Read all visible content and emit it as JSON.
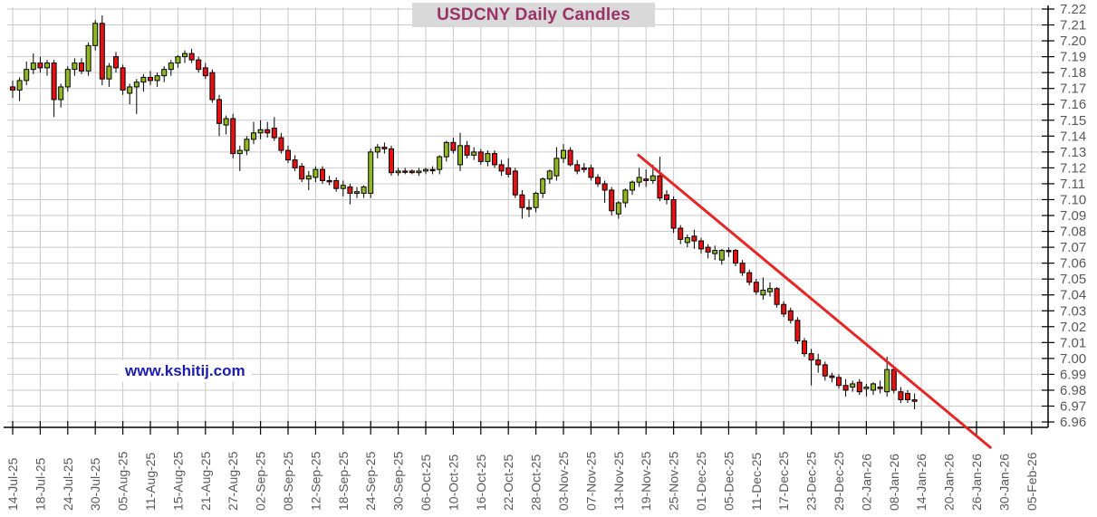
{
  "title": "USDCNY Daily Candles",
  "watermark": "www.kshitij.com",
  "chart_data": {
    "type": "candlestick",
    "title": "USDCNY Daily Candles",
    "x_labels": [
      "14-Jul-25",
      "18-Jul-25",
      "24-Jul-25",
      "30-Jul-25",
      "05-Aug-25",
      "11-Aug-25",
      "15-Aug-25",
      "21-Aug-25",
      "27-Aug-25",
      "02-Sep-25",
      "08-Sep-25",
      "12-Sep-25",
      "18-Sep-25",
      "24-Sep-25",
      "30-Sep-25",
      "06-Oct-25",
      "10-Oct-25",
      "16-Oct-25",
      "22-Oct-25",
      "28-Oct-25",
      "03-Nov-25",
      "07-Nov-25",
      "13-Nov-25",
      "19-Nov-25",
      "25-Nov-25",
      "01-Dec-25",
      "05-Dec-25",
      "11-Dec-25",
      "17-Dec-25",
      "23-Dec-25",
      "29-Dec-25",
      "02-Jan-26",
      "08-Jan-26",
      "14-Jan-26",
      "20-Jan-26",
      "26-Jan-26",
      "30-Jan-26",
      "05-Feb-26"
    ],
    "label_every_n_candles": 4,
    "y_ticks": [
      "7.22",
      "7.21",
      "7.20",
      "7.19",
      "7.18",
      "7.17",
      "7.16",
      "7.15",
      "7.14",
      "7.13",
      "7.12",
      "7.11",
      "7.10",
      "7.09",
      "7.08",
      "7.07",
      "7.06",
      "7.05",
      "7.04",
      "7.03",
      "7.02",
      "7.01",
      "7.00",
      "6.99",
      "6.98",
      "6.97",
      "6.96"
    ],
    "ylim": [
      6.955,
      7.225
    ],
    "grid": true,
    "candles_ohlc": [
      [
        7.171,
        7.175,
        7.164,
        7.169
      ],
      [
        7.169,
        7.177,
        7.162,
        7.175
      ],
      [
        7.175,
        7.187,
        7.172,
        7.182
      ],
      [
        7.182,
        7.192,
        7.179,
        7.186
      ],
      [
        7.186,
        7.19,
        7.18,
        7.183
      ],
      [
        7.183,
        7.188,
        7.178,
        7.186
      ],
      [
        7.186,
        7.188,
        7.152,
        7.163
      ],
      [
        7.163,
        7.173,
        7.158,
        7.171
      ],
      [
        7.171,
        7.184,
        7.168,
        7.182
      ],
      [
        7.182,
        7.189,
        7.178,
        7.186
      ],
      [
        7.186,
        7.189,
        7.179,
        7.181
      ],
      [
        7.181,
        7.199,
        7.178,
        7.197
      ],
      [
        7.197,
        7.213,
        7.194,
        7.211
      ],
      [
        7.211,
        7.216,
        7.172,
        7.176
      ],
      [
        7.176,
        7.186,
        7.171,
        7.184
      ],
      [
        7.19,
        7.193,
        7.18,
        7.183
      ],
      [
        7.183,
        7.185,
        7.166,
        7.169
      ],
      [
        7.167,
        7.173,
        7.16,
        7.171
      ],
      [
        7.171,
        7.176,
        7.154,
        7.174
      ],
      [
        7.174,
        7.179,
        7.168,
        7.177
      ],
      [
        7.177,
        7.181,
        7.172,
        7.175
      ],
      [
        7.175,
        7.18,
        7.171,
        7.178
      ],
      [
        7.178,
        7.184,
        7.174,
        7.182
      ],
      [
        7.182,
        7.188,
        7.178,
        7.186
      ],
      [
        7.186,
        7.191,
        7.183,
        7.19
      ],
      [
        7.19,
        7.194,
        7.186,
        7.192
      ],
      [
        7.192,
        7.195,
        7.186,
        7.188
      ],
      [
        7.188,
        7.19,
        7.18,
        7.182
      ],
      [
        7.183,
        7.186,
        7.176,
        7.178
      ],
      [
        7.18,
        7.182,
        7.161,
        7.163
      ],
      [
        7.163,
        7.166,
        7.14,
        7.148
      ],
      [
        7.147,
        7.153,
        7.141,
        7.151
      ],
      [
        7.151,
        7.154,
        7.126,
        7.129
      ],
      [
        7.129,
        7.134,
        7.118,
        7.131
      ],
      [
        7.131,
        7.14,
        7.128,
        7.138
      ],
      [
        7.138,
        7.149,
        7.135,
        7.142
      ],
      [
        7.142,
        7.15,
        7.138,
        7.144
      ],
      [
        7.144,
        7.149,
        7.139,
        7.142
      ],
      [
        7.145,
        7.152,
        7.137,
        7.139
      ],
      [
        7.139,
        7.142,
        7.129,
        7.131
      ],
      [
        7.131,
        7.134,
        7.123,
        7.125
      ],
      [
        7.125,
        7.128,
        7.118,
        7.12
      ],
      [
        7.121,
        7.123,
        7.111,
        7.113
      ],
      [
        7.113,
        7.118,
        7.106,
        7.115
      ],
      [
        7.114,
        7.121,
        7.111,
        7.119
      ],
      [
        7.119,
        7.121,
        7.11,
        7.112
      ],
      [
        7.112,
        7.115,
        7.109,
        7.112
      ],
      [
        7.112,
        7.114,
        7.105,
        7.107
      ],
      [
        7.107,
        7.112,
        7.102,
        7.109
      ],
      [
        7.108,
        7.11,
        7.097,
        7.104
      ],
      [
        7.104,
        7.108,
        7.101,
        7.105
      ],
      [
        7.104,
        7.109,
        7.101,
        7.108
      ],
      [
        7.104,
        7.132,
        7.101,
        7.13
      ],
      [
        7.13,
        7.135,
        7.126,
        7.133
      ],
      [
        7.133,
        7.136,
        7.129,
        7.132
      ],
      [
        7.132,
        7.134,
        7.115,
        7.117
      ],
      [
        7.117,
        7.12,
        7.115,
        7.118
      ],
      [
        7.118,
        7.12,
        7.116,
        7.118
      ],
      [
        7.118,
        7.119,
        7.116,
        7.117
      ],
      [
        7.117,
        7.12,
        7.115,
        7.118
      ],
      [
        7.118,
        7.12,
        7.116,
        7.119
      ],
      [
        7.119,
        7.121,
        7.116,
        7.119
      ],
      [
        7.119,
        7.128,
        7.116,
        7.127
      ],
      [
        7.127,
        7.137,
        7.124,
        7.136
      ],
      [
        7.136,
        7.139,
        7.129,
        7.131
      ],
      [
        7.122,
        7.142,
        7.118,
        7.134
      ],
      [
        7.134,
        7.137,
        7.126,
        7.128
      ],
      [
        7.128,
        7.133,
        7.125,
        7.13
      ],
      [
        7.13,
        7.132,
        7.122,
        7.124
      ],
      [
        7.124,
        7.131,
        7.121,
        7.129
      ],
      [
        7.129,
        7.131,
        7.12,
        7.122
      ],
      [
        7.122,
        7.125,
        7.115,
        7.118
      ],
      [
        7.12,
        7.126,
        7.114,
        7.116
      ],
      [
        7.118,
        7.12,
        7.101,
        7.103
      ],
      [
        7.103,
        7.106,
        7.088,
        7.095
      ],
      [
        7.095,
        7.1,
        7.089,
        7.094
      ],
      [
        7.095,
        7.105,
        7.092,
        7.104
      ],
      [
        7.104,
        7.114,
        7.101,
        7.113
      ],
      [
        7.113,
        7.119,
        7.11,
        7.118
      ],
      [
        7.115,
        7.133,
        7.112,
        7.126
      ],
      [
        7.126,
        7.135,
        7.123,
        7.131
      ],
      [
        7.131,
        7.133,
        7.121,
        7.122
      ],
      [
        7.122,
        7.125,
        7.116,
        7.118
      ],
      [
        7.12,
        7.123,
        7.117,
        7.119
      ],
      [
        7.12,
        7.122,
        7.112,
        7.114
      ],
      [
        7.114,
        7.116,
        7.108,
        7.11
      ],
      [
        7.11,
        7.112,
        7.098,
        7.106
      ],
      [
        7.106,
        7.108,
        7.09,
        7.093
      ],
      [
        7.091,
        7.099,
        7.088,
        7.098
      ],
      [
        7.098,
        7.107,
        7.095,
        7.106
      ],
      [
        7.106,
        7.112,
        7.103,
        7.111
      ],
      [
        7.111,
        7.12,
        7.108,
        7.114
      ],
      [
        7.113,
        7.119,
        7.108,
        7.112
      ],
      [
        7.112,
        7.122,
        7.11,
        7.115
      ],
      [
        7.115,
        7.127,
        7.099,
        7.101
      ],
      [
        7.103,
        7.106,
        7.097,
        7.1
      ],
      [
        7.1,
        7.102,
        7.079,
        7.082
      ],
      [
        7.082,
        7.084,
        7.072,
        7.075
      ],
      [
        7.073,
        7.078,
        7.07,
        7.076
      ],
      [
        7.077,
        7.081,
        7.069,
        7.074
      ],
      [
        7.074,
        7.076,
        7.066,
        7.069
      ],
      [
        7.07,
        7.072,
        7.063,
        7.067
      ],
      [
        7.066,
        7.071,
        7.062,
        7.068
      ],
      [
        7.062,
        7.069,
        7.059,
        7.068
      ],
      [
        7.068,
        7.07,
        7.064,
        7.068
      ],
      [
        7.068,
        7.069,
        7.058,
        7.06
      ],
      [
        7.06,
        7.062,
        7.052,
        7.054
      ],
      [
        7.054,
        7.056,
        7.046,
        7.048
      ],
      [
        7.048,
        7.05,
        7.04,
        7.042
      ],
      [
        7.04,
        7.051,
        7.037,
        7.043
      ],
      [
        7.042,
        7.048,
        7.039,
        7.044
      ],
      [
        7.044,
        7.045,
        7.032,
        7.034
      ],
      [
        7.034,
        7.036,
        7.026,
        7.028
      ],
      [
        7.03,
        7.032,
        7.022,
        7.024
      ],
      [
        7.024,
        7.026,
        7.009,
        7.011
      ],
      [
        7.011,
        7.013,
        7.001,
        7.003
      ],
      [
        7.003,
        7.006,
        6.983,
        6.999
      ],
      [
        6.999,
        7.003,
        6.991,
        6.996
      ],
      [
        6.996,
        6.998,
        6.986,
        6.989
      ],
      [
        6.989,
        6.991,
        6.985,
        6.988
      ],
      [
        6.988,
        6.99,
        6.981,
        6.983
      ],
      [
        6.983,
        6.987,
        6.976,
        6.98
      ],
      [
        6.982,
        6.986,
        6.979,
        6.984
      ],
      [
        6.985,
        6.987,
        6.977,
        6.979
      ],
      [
        6.981,
        6.984,
        6.976,
        6.982
      ],
      [
        6.98,
        6.985,
        6.977,
        6.984
      ],
      [
        6.982,
        6.986,
        6.978,
        6.981
      ],
      [
        6.979,
        7.001,
        6.976,
        6.993
      ],
      [
        6.993,
        6.995,
        6.978,
        6.98
      ],
      [
        6.979,
        6.982,
        6.972,
        6.974
      ],
      [
        6.978,
        6.98,
        6.972,
        6.974
      ],
      [
        6.974,
        6.978,
        6.968,
        6.973
      ]
    ],
    "trendline": {
      "from_index": 90.9,
      "from_value": 7.128,
      "to_index": 142.0,
      "to_value": 6.944
    },
    "colors": {
      "up": "#92b821",
      "down": "#e41212",
      "wick": "#000000",
      "grid": "#c9c9c9",
      "axis": "#000000",
      "tick_label": "#595959",
      "trendline": "#e62626",
      "title_color": "#993366",
      "title_bg": "#d9d9d9",
      "watermark_color": "#1c1cb0",
      "background": "#ffffff"
    }
  }
}
